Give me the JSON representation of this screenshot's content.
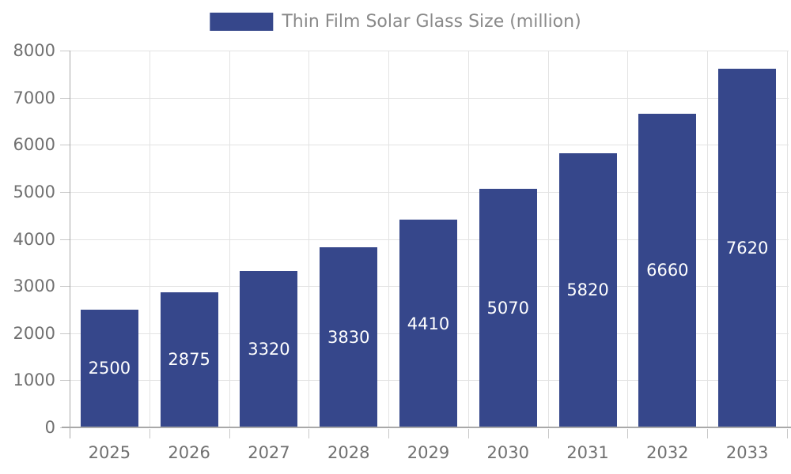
{
  "chart": {
    "legend": {
      "label": "Thin Film Solar Glass Size (million)",
      "position": "top-center"
    },
    "colors": {
      "bar": "#36478B",
      "bar_value_text": "#FFFFFF",
      "axis_text": "#707070",
      "legend_text": "#8A8A8A",
      "gridline": "#E3E3E3",
      "tick": "#C8C8C8",
      "axis_line": "#A9A9A9",
      "background": "#FFFFFF"
    }
  },
  "chart_data": {
    "type": "bar",
    "title": "Thin Film Solar Glass Size (million)",
    "series_name": "Thin Film Solar Glass Size (million)",
    "categories": [
      "2025",
      "2026",
      "2027",
      "2028",
      "2029",
      "2030",
      "2031",
      "2032",
      "2033"
    ],
    "values": [
      2500,
      2875,
      3320,
      3830,
      4410,
      5070,
      5820,
      6660,
      7620
    ],
    "xlabel": "",
    "ylabel": "",
    "ylim": [
      0,
      8000
    ],
    "yticks": [
      0,
      1000,
      2000,
      3000,
      4000,
      5000,
      6000,
      7000,
      8000
    ],
    "grid": true,
    "legend_position": "top-center",
    "value_label_position": "inside-center"
  }
}
